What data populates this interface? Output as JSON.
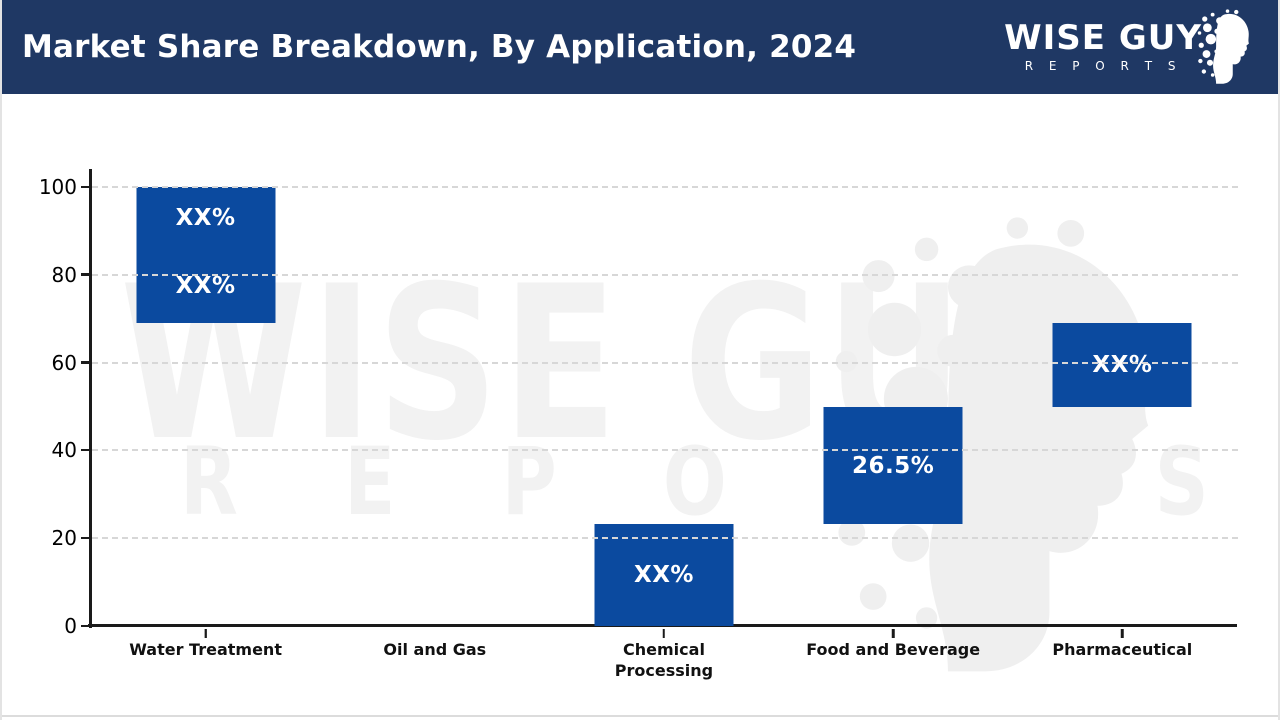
{
  "header": {
    "title": "Market Share Breakdown, By Application, 2024",
    "bg_color": "#1f3864",
    "logo": {
      "wordmark": "WISE GUY",
      "subtext": "R E P O R T S"
    }
  },
  "watermark": {
    "line1": "WISE GUY",
    "line2": "R E P O R T S"
  },
  "chart_data": {
    "type": "bar",
    "variant": "waterfall (floating cumulative bars)",
    "title": "Market Share Breakdown, By Application, 2024",
    "categories": [
      "Water Treatment",
      "Oil and Gas",
      "Chemical Processing",
      "Food and Beverage",
      "Pharmaceutical"
    ],
    "tick_labels": [
      "Water Treatment",
      "Oil and Gas",
      "Chemical\nProcessing",
      "Food and Beverage",
      "Pharmaceutical"
    ],
    "values": [
      23.3,
      26.5,
      19.2,
      16.7,
      14.3
    ],
    "series": [
      {
        "name": "Market Share %",
        "segments": [
          {
            "start": 0,
            "end": 23.3,
            "value_label": "XX%"
          },
          {
            "start": 23.3,
            "end": 49.8,
            "value_label": "26.5%"
          },
          {
            "start": 49.8,
            "end": 69.0,
            "value_label": "XX%"
          },
          {
            "start": 69.0,
            "end": 85.7,
            "value_label": "XX%"
          },
          {
            "start": 85.7,
            "end": 100.0,
            "value_label": "XX%"
          }
        ]
      }
    ],
    "ylim": [
      0,
      100
    ],
    "yticks": [
      "0",
      "20",
      "40",
      "60",
      "80",
      "100"
    ],
    "grid": {
      "axis": "y",
      "style": "dashed",
      "color": "#d7d7d7",
      "above_bars": true
    },
    "legend": "none",
    "bar_color": "#0b4a9f",
    "bar_label_color": "#ffffff",
    "axis_color": "#1a1a1a"
  }
}
